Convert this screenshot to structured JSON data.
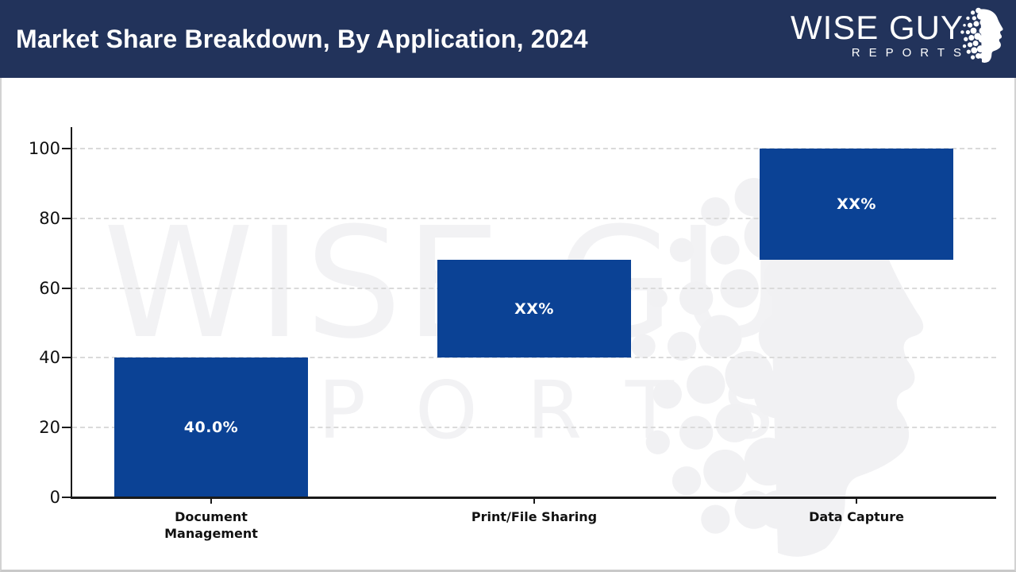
{
  "header": {
    "title": "Market Share Breakdown, By Application, 2024",
    "bg_color": "#22335b",
    "logo": {
      "line1": "WISE GUY",
      "line2": "REPORTS"
    }
  },
  "watermark": {
    "line1": "WISE GUY",
    "line2": "REPORTS"
  },
  "chart_data": {
    "type": "bar",
    "subtype": "waterfall",
    "title": "Market Share Breakdown, By Application, 2024",
    "xlabel": "",
    "ylabel": "",
    "ylim": [
      0,
      100
    ],
    "yticks": [
      0,
      20,
      40,
      60,
      80,
      100
    ],
    "grid": "horizontal dashed",
    "legend": "none",
    "bar_color": "#0b4295",
    "bar_label_color": "#ffffff",
    "axis_color": "#1a1a1a",
    "categories": [
      {
        "label": "Document Management",
        "lines": [
          "Document",
          "Management"
        ]
      },
      {
        "label": "Print/File Sharing",
        "lines": [
          "Print/File Sharing"
        ]
      },
      {
        "label": "Data Capture",
        "lines": [
          "Data Capture"
        ]
      }
    ],
    "segments": [
      {
        "category": "Document Management",
        "start": 0,
        "end": 40,
        "label": "40.0%"
      },
      {
        "category": "Print/File Sharing",
        "start": 40,
        "end": 68,
        "label": "XX%"
      },
      {
        "category": "Data Capture",
        "start": 68,
        "end": 100,
        "label": "XX%"
      }
    ]
  }
}
